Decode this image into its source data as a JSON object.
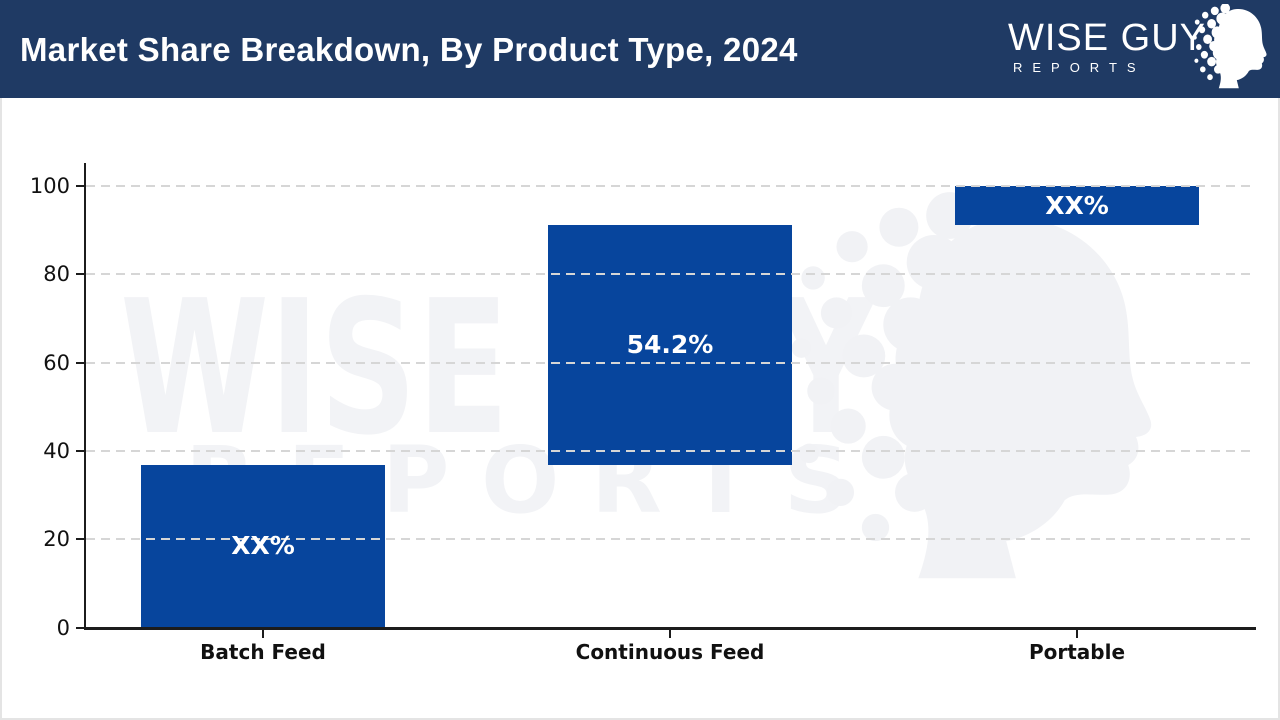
{
  "header": {
    "title": "Market Share Breakdown, By Product Type, 2024",
    "logo": {
      "line1": "WISE GUY",
      "line2": "REPORTS"
    }
  },
  "watermark": {
    "line1": "WISE GUY",
    "line2": "REPORTS"
  },
  "chart_data": {
    "type": "bar",
    "subtype": "stacked-waterfall",
    "title": "Market Share Breakdown, By Product Type, 2024",
    "categories": [
      "Batch Feed",
      "Continuous Feed",
      "Portable"
    ],
    "segments": [
      {
        "category": "Batch Feed",
        "start": 0,
        "end": 36.9,
        "value_label": "XX%"
      },
      {
        "category": "Continuous Feed",
        "start": 36.9,
        "end": 91.1,
        "value_label": "54.2%"
      },
      {
        "category": "Portable",
        "start": 91.1,
        "end": 100,
        "value_label": "XX%"
      }
    ],
    "xlabel": "",
    "ylabel": "",
    "ylim": [
      0,
      100
    ],
    "yticks": [
      0,
      20,
      40,
      60,
      80,
      100
    ],
    "grid": {
      "axis": "y",
      "style": "dashed",
      "color": "#d6d6d6"
    },
    "legend": "none",
    "bar_color": "#07459d",
    "bar_label_color": "#ffffff"
  },
  "colors": {
    "header_bg": "#1f3a64",
    "bar": "#07459d",
    "watermark": "#f2f3f6",
    "axis": "#1c1c1c"
  }
}
